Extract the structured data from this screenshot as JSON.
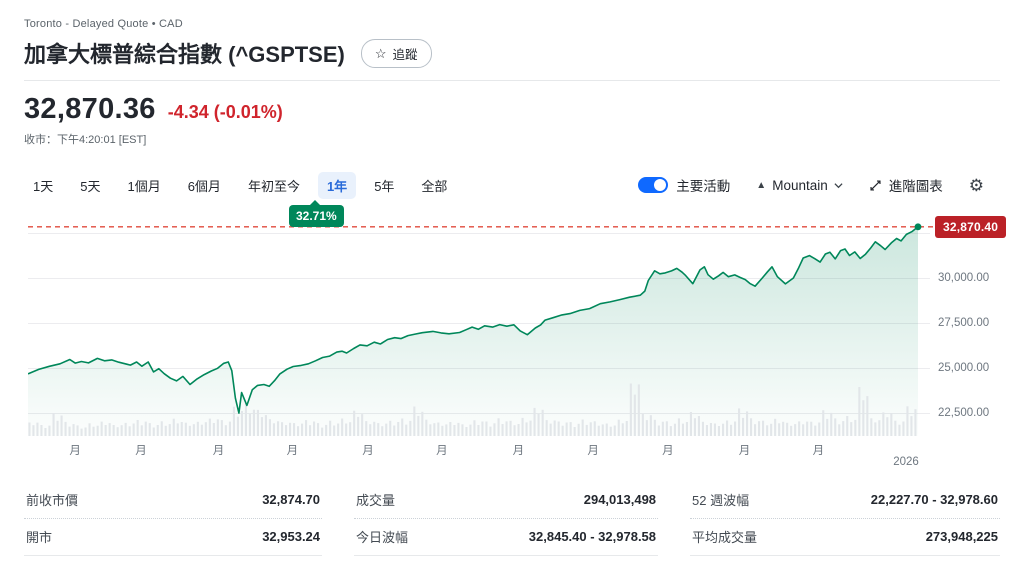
{
  "header": {
    "exchange_line": "Toronto - Delayed Quote • CAD",
    "title": "加拿大標普綜合指數 (^GSPTSE)",
    "follow": {
      "icon": "star",
      "label": "追蹤"
    },
    "price": "32,870.36",
    "change": "-4.34",
    "change_percent": "(-0.01%)",
    "market_status": "收市：下午4:20:01 [EST]"
  },
  "toolbar": {
    "ranges": [
      "1天",
      "5天",
      "1個月",
      "6個月",
      "年初至今",
      "1年",
      "5年",
      "全部"
    ],
    "selected_index": 5,
    "toggle_label": "主要活動",
    "chart_type_label": "Mountain",
    "advanced_label": "進階圖表"
  },
  "chart_data": {
    "type": "area",
    "series_name": "^GSPTSE",
    "period": "1年",
    "gain_percent_label": "32.71%",
    "last_price": 32870.4,
    "last_price_label": "32,870.40",
    "y_axis": {
      "gridline_values": [
        32500,
        30000,
        27500,
        25000,
        22500
      ],
      "ticks": [
        {
          "v": 30000,
          "label": "30,000.00"
        },
        {
          "v": 27500,
          "label": "27,500.00"
        },
        {
          "v": 25000,
          "label": "25,000.00"
        },
        {
          "v": 22500,
          "label": "22,500.00"
        }
      ]
    },
    "x_axis": {
      "month_label": "月",
      "month_fractions": [
        0.053,
        0.127,
        0.214,
        0.297,
        0.382,
        0.465,
        0.551,
        0.635,
        0.719,
        0.805,
        0.888
      ],
      "year_label": "2026",
      "year_fraction": 0.9865
    },
    "points": [
      [
        0.0,
        24700
      ],
      [
        0.012,
        24950
      ],
      [
        0.024,
        25120
      ],
      [
        0.036,
        25260
      ],
      [
        0.047,
        25500
      ],
      [
        0.053,
        25300
      ],
      [
        0.06,
        25390
      ],
      [
        0.068,
        25310
      ],
      [
        0.078,
        25560
      ],
      [
        0.086,
        25430
      ],
      [
        0.094,
        25480
      ],
      [
        0.102,
        25350
      ],
      [
        0.115,
        25190
      ],
      [
        0.122,
        25360
      ],
      [
        0.128,
        25130
      ],
      [
        0.135,
        25360
      ],
      [
        0.141,
        24810
      ],
      [
        0.147,
        24990
      ],
      [
        0.153,
        24710
      ],
      [
        0.16,
        24460
      ],
      [
        0.167,
        24310
      ],
      [
        0.174,
        24560
      ],
      [
        0.182,
        24110
      ],
      [
        0.19,
        24420
      ],
      [
        0.198,
        24660
      ],
      [
        0.206,
        24860
      ],
      [
        0.213,
        25010
      ],
      [
        0.22,
        25290
      ],
      [
        0.225,
        25360
      ],
      [
        0.229,
        24880
      ],
      [
        0.233,
        23350
      ],
      [
        0.237,
        22520
      ],
      [
        0.24,
        23660
      ],
      [
        0.246,
        22950
      ],
      [
        0.252,
        23820
      ],
      [
        0.258,
        24060
      ],
      [
        0.265,
        24110
      ],
      [
        0.271,
        24010
      ],
      [
        0.277,
        24320
      ],
      [
        0.283,
        24700
      ],
      [
        0.291,
        24960
      ],
      [
        0.298,
        25110
      ],
      [
        0.307,
        25170
      ],
      [
        0.315,
        25260
      ],
      [
        0.323,
        25430
      ],
      [
        0.331,
        25610
      ],
      [
        0.339,
        25690
      ],
      [
        0.347,
        25910
      ],
      [
        0.353,
        25960
      ],
      [
        0.358,
        25860
      ],
      [
        0.366,
        26110
      ],
      [
        0.373,
        26310
      ],
      [
        0.381,
        26260
      ],
      [
        0.389,
        26460
      ],
      [
        0.396,
        26360
      ],
      [
        0.404,
        26610
      ],
      [
        0.412,
        26710
      ],
      [
        0.419,
        26660
      ],
      [
        0.427,
        26830
      ],
      [
        0.435,
        26910
      ],
      [
        0.443,
        26990
      ],
      [
        0.455,
        27060
      ],
      [
        0.464,
        26980
      ],
      [
        0.473,
        26930
      ],
      [
        0.485,
        27000
      ],
      [
        0.492,
        27150
      ],
      [
        0.499,
        27300
      ],
      [
        0.506,
        27180
      ],
      [
        0.513,
        27370
      ],
      [
        0.522,
        27300
      ],
      [
        0.53,
        27440
      ],
      [
        0.538,
        27350
      ],
      [
        0.546,
        27430
      ],
      [
        0.553,
        27090
      ],
      [
        0.561,
        26880
      ],
      [
        0.57,
        27250
      ],
      [
        0.576,
        27420
      ],
      [
        0.581,
        27690
      ],
      [
        0.59,
        27820
      ],
      [
        0.6,
        27980
      ],
      [
        0.609,
        28050
      ],
      [
        0.62,
        28230
      ],
      [
        0.631,
        28330
      ],
      [
        0.643,
        28600
      ],
      [
        0.654,
        28700
      ],
      [
        0.665,
        28830
      ],
      [
        0.676,
        28960
      ],
      [
        0.688,
        29070
      ],
      [
        0.693,
        29300
      ],
      [
        0.697,
        29890
      ],
      [
        0.704,
        30430
      ],
      [
        0.71,
        30260
      ],
      [
        0.716,
        30310
      ],
      [
        0.723,
        30420
      ],
      [
        0.729,
        30560
      ],
      [
        0.735,
        30350
      ],
      [
        0.739,
        30160
      ],
      [
        0.747,
        29710
      ],
      [
        0.755,
        30480
      ],
      [
        0.76,
        30650
      ],
      [
        0.764,
        30210
      ],
      [
        0.77,
        29960
      ],
      [
        0.776,
        30150
      ],
      [
        0.781,
        30340
      ],
      [
        0.787,
        30100
      ],
      [
        0.794,
        30200
      ],
      [
        0.8,
        30060
      ],
      [
        0.806,
        29940
      ],
      [
        0.811,
        29730
      ],
      [
        0.817,
        29570
      ],
      [
        0.825,
        30030
      ],
      [
        0.831,
        30380
      ],
      [
        0.836,
        30650
      ],
      [
        0.842,
        30100
      ],
      [
        0.851,
        29700
      ],
      [
        0.86,
        30030
      ],
      [
        0.866,
        30600
      ],
      [
        0.871,
        31140
      ],
      [
        0.878,
        31270
      ],
      [
        0.884,
        31100
      ],
      [
        0.89,
        30910
      ],
      [
        0.896,
        31360
      ],
      [
        0.901,
        31460
      ],
      [
        0.907,
        31090
      ],
      [
        0.913,
        31550
      ],
      [
        0.918,
        31640
      ],
      [
        0.923,
        31280
      ],
      [
        0.929,
        31480
      ],
      [
        0.935,
        31110
      ],
      [
        0.941,
        31350
      ],
      [
        0.947,
        31700
      ],
      [
        0.952,
        32040
      ],
      [
        0.958,
        31820
      ],
      [
        0.963,
        31610
      ],
      [
        0.97,
        31980
      ],
      [
        0.976,
        32220
      ],
      [
        0.981,
        32090
      ],
      [
        0.987,
        32450
      ],
      [
        0.993,
        32600
      ],
      [
        1.0,
        32870
      ]
    ],
    "volume_profile": [
      0.26,
      0.2,
      0.4,
      0.24,
      0.18,
      0.22,
      0.26,
      0.21,
      0.24,
      0.28,
      0.22,
      0.25,
      0.3,
      0.24,
      0.27,
      0.32,
      0.28,
      0.5,
      0.55,
      0.45,
      0.3,
      0.26,
      0.24,
      0.28,
      0.22,
      0.26,
      0.3,
      0.45,
      0.28,
      0.24,
      0.27,
      0.3,
      0.5,
      0.28,
      0.24,
      0.26,
      0.22,
      0.28,
      0.25,
      0.3,
      0.26,
      0.32,
      0.52,
      0.3,
      0.26,
      0.24,
      0.28,
      0.25,
      0.22,
      0.3,
      1.0,
      0.4,
      0.28,
      0.25,
      0.3,
      0.42,
      0.26,
      0.24,
      0.28,
      0.48,
      0.3,
      0.26,
      0.3,
      0.24,
      0.28,
      0.26,
      0.45,
      0.3,
      0.34,
      0.85,
      0.32,
      0.45,
      0.28,
      0.52
    ],
    "colors": {
      "line": "#00875a",
      "fill_top": "rgba(0,135,90,0.20)",
      "fill_bottom": "rgba(0,135,90,0.01)",
      "dashed_line": "#e0493c",
      "price_flag_bg": "#bb2127",
      "pct_badge_bg": "#00875a",
      "volume_bar": "#e2e6e9",
      "gridline": "#ececef"
    }
  },
  "footer": {
    "rows": [
      {
        "cells": [
          {
            "label": "前收市價",
            "value": "32,874.70"
          },
          {
            "label": "成交量",
            "value": "294,013,498"
          },
          {
            "label": "52 週波幅",
            "value": "22,227.70 - 32,978.60"
          }
        ]
      },
      {
        "cells": [
          {
            "label": "開市",
            "value": "32,953.24"
          },
          {
            "label": "今日波幅",
            "value": "32,845.40 - 32,978.58"
          },
          {
            "label": "平均成交量",
            "value": "273,948,225"
          }
        ]
      }
    ]
  }
}
